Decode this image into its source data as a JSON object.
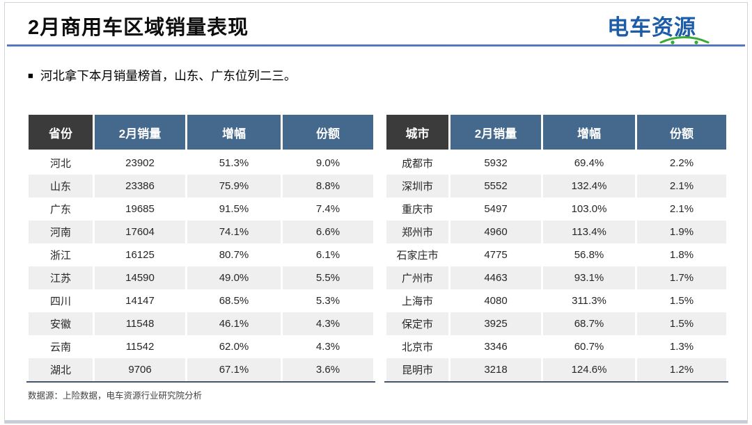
{
  "slide": {
    "title": "2月商用车区域销量表现",
    "bullet_marker": "■",
    "bullet": "河北拿下本月销量榜首，山东、广东位列二三。",
    "footer": "数据源：上险数据，电车资源行业研究院分析",
    "logo_text": "电车资源"
  },
  "colors": {
    "header_blue": "#45698d",
    "header_dark": "#3b3b3b",
    "row_stripe": "#efefef",
    "accent_line_blue": "#2f58a8",
    "logo_blue": "#1c5ca8",
    "logo_green": "#3bа935",
    "table_bottom_border": "#44546a"
  },
  "tables": [
    {
      "name": "province-sales",
      "headers": [
        "省份",
        "2月销量",
        "增幅",
        "份额"
      ],
      "rows": [
        [
          "河北",
          "23902",
          "51.3%",
          "9.0%"
        ],
        [
          "山东",
          "23386",
          "75.9%",
          "8.8%"
        ],
        [
          "广东",
          "19685",
          "91.5%",
          "7.4%"
        ],
        [
          "河南",
          "17604",
          "74.1%",
          "6.6%"
        ],
        [
          "浙江",
          "16125",
          "80.7%",
          "6.1%"
        ],
        [
          "江苏",
          "14590",
          "49.0%",
          "5.5%"
        ],
        [
          "四川",
          "14147",
          "68.5%",
          "5.3%"
        ],
        [
          "安徽",
          "11548",
          "46.1%",
          "4.3%"
        ],
        [
          "云南",
          "11542",
          "62.0%",
          "4.3%"
        ],
        [
          "湖北",
          "9706",
          "67.1%",
          "3.6%"
        ]
      ]
    },
    {
      "name": "city-sales",
      "headers": [
        "城市",
        "2月销量",
        "增幅",
        "份额"
      ],
      "rows": [
        [
          "成都市",
          "5932",
          "69.4%",
          "2.2%"
        ],
        [
          "深圳市",
          "5552",
          "132.4%",
          "2.1%"
        ],
        [
          "重庆市",
          "5497",
          "103.0%",
          "2.1%"
        ],
        [
          "郑州市",
          "4960",
          "113.4%",
          "1.9%"
        ],
        [
          "石家庄市",
          "4775",
          "56.8%",
          "1.8%"
        ],
        [
          "广州市",
          "4463",
          "93.1%",
          "1.7%"
        ],
        [
          "上海市",
          "4080",
          "311.3%",
          "1.5%"
        ],
        [
          "保定市",
          "3925",
          "68.7%",
          "1.5%"
        ],
        [
          "北京市",
          "3346",
          "60.7%",
          "1.3%"
        ],
        [
          "昆明市",
          "3218",
          "124.6%",
          "1.2%"
        ]
      ]
    }
  ]
}
